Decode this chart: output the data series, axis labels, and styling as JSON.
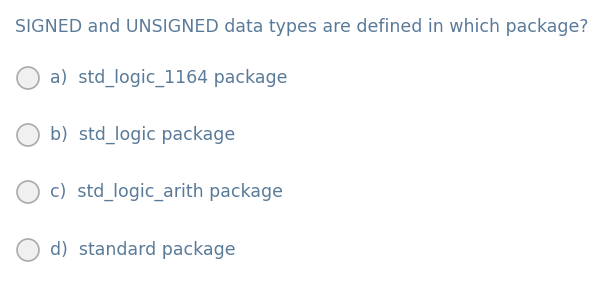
{
  "question": "SIGNED and UNSIGNED data types are defined in which package?",
  "options": [
    "a)  std_logic_1164 package",
    "b)  std_logic package",
    "c)  std_logic_arith package",
    "d)  standard package"
  ],
  "text_color": "#5a7a9a",
  "circle_edge_color": "#aaaaaa",
  "circle_fill_color": "#f0f0f0",
  "background_color": "#ffffff",
  "question_fontsize": 12.5,
  "option_fontsize": 12.5,
  "fig_width": 6.07,
  "fig_height": 2.91,
  "dpi": 100
}
